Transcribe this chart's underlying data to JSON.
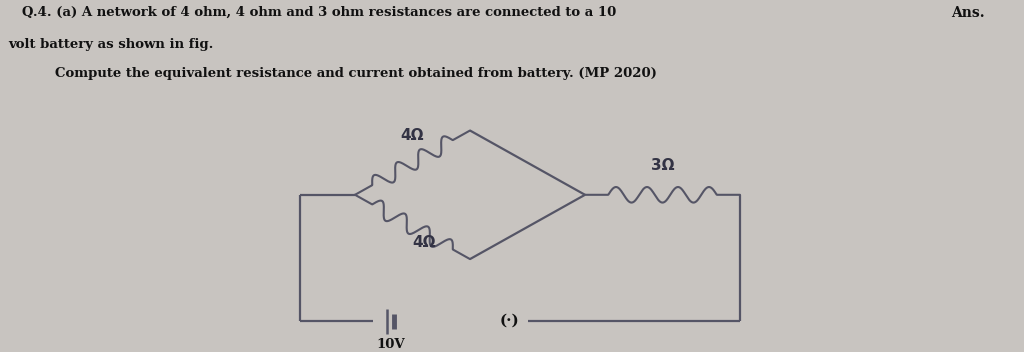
{
  "bg_color": "#c8c4c0",
  "circuit_color": "#555566",
  "text_color": "#111111",
  "label_4ohm_top": "4Ω",
  "label_4ohm_bot": "4Ω",
  "label_3ohm": "3Ω",
  "label_battery": "10V",
  "label_dot": "(·)",
  "ans_text": "Ans.",
  "title_line1": "Q.4. (a) A network of 4 ohm, 4 ohm and 3 ohm resistances are connected to a 10",
  "title_line2": "volt battery as shown in fig.",
  "title_line3": "Compute the equivalent resistance and current obtained from battery. (MP 2020)",
  "lw": 1.6,
  "res_lw": 1.5,
  "res_amp": 0.07,
  "res_bumps": 7
}
